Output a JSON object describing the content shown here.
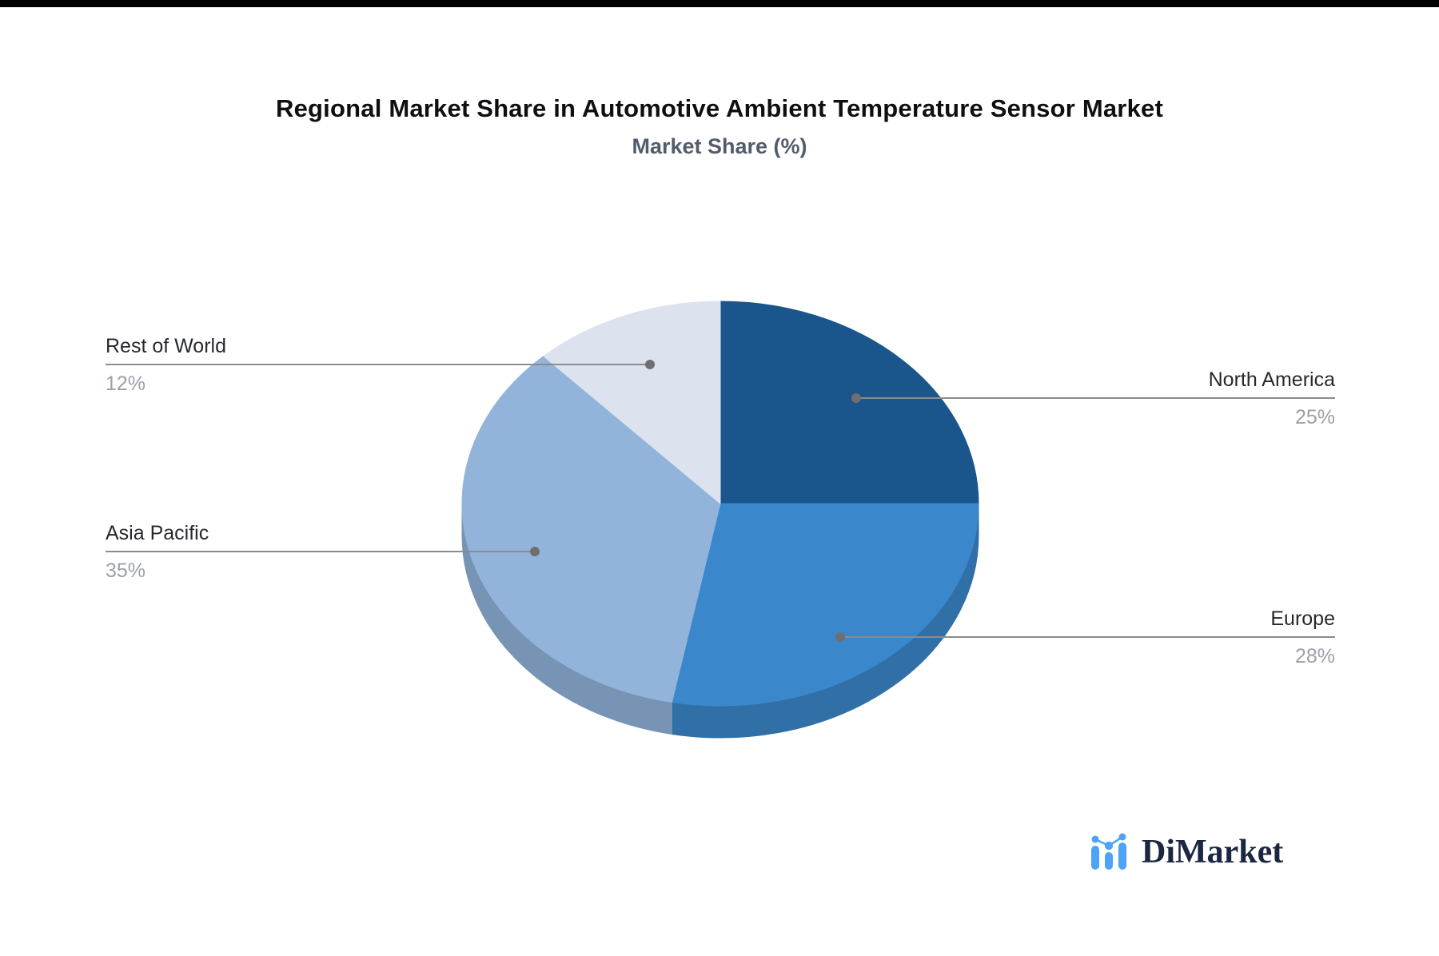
{
  "page": {
    "background": "#ffffff",
    "top_bar_color": "#000000"
  },
  "chart_data": {
    "type": "pie",
    "style": "3d",
    "title": "Regional Market Share in Automotive Ambient Temperature Sensor Market",
    "subtitle": "Market Share (%)",
    "unit": "%",
    "direction": "clockwise",
    "start_position": "12-oclock",
    "slices": [
      {
        "label": "North America",
        "value": 25,
        "color": "#1A568C"
      },
      {
        "label": "Europe",
        "value": 28,
        "color": "#3A88CB"
      },
      {
        "label": "Asia Pacific",
        "value": 35,
        "color": "#92B4DB"
      },
      {
        "label": "Rest of World",
        "value": 12,
        "color": "#DCE3EE"
      }
    ],
    "leader_line_color": "#8c8c8c",
    "leader_dot_color": "#6f6f6f",
    "label_color": "#26292e",
    "value_color": "#9ba1a8",
    "legend_position": "callout-labels",
    "grid": false
  },
  "branding": {
    "logo_text": "DiMarket",
    "logo_text_color": "#1b2740",
    "logo_icon_color": "#4DA3F7",
    "logo_icon": "bar-chart-with-trend-dots"
  }
}
